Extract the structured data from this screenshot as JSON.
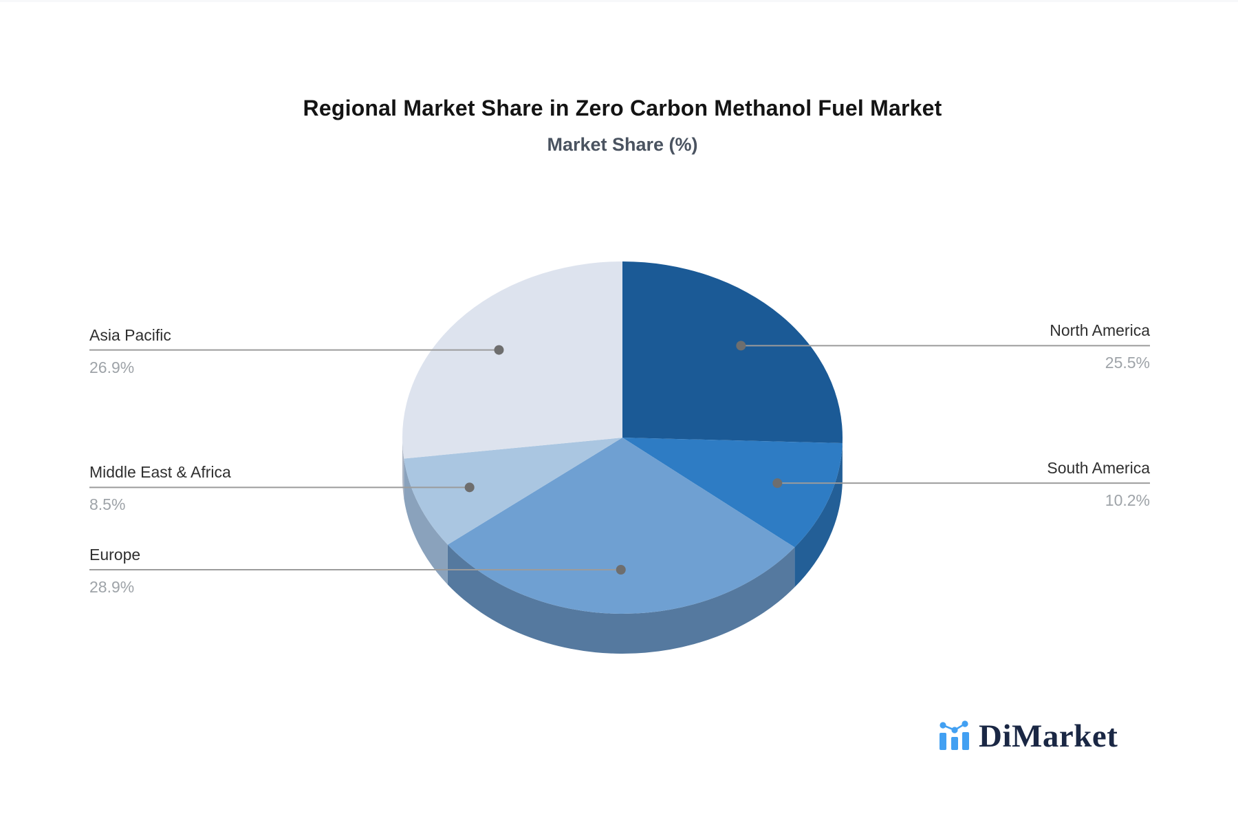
{
  "header": {
    "title": "Regional Market Share in Zero Carbon Methanol Fuel Market",
    "subtitle": "Market Share (%)"
  },
  "chart_data": {
    "type": "pie",
    "style": "3d",
    "title": "Regional Market Share in Zero Carbon Methanol Fuel Market",
    "subtitle": "Market Share (%)",
    "unit": "%",
    "direction": "clockwise",
    "start_angle_deg": 0,
    "segments": [
      {
        "label": "North America",
        "value": 25.5,
        "color": "#1b5a96",
        "side_color": "#164a7c"
      },
      {
        "label": "South America",
        "value": 10.2,
        "color": "#2e7cc4",
        "side_color": "#235f97"
      },
      {
        "label": "Europe",
        "value": 28.9,
        "color": "#6fa0d2",
        "side_color": "#55799f"
      },
      {
        "label": "Middle East & Africa",
        "value": 8.5,
        "color": "#aac6e1",
        "side_color": "#8aa2bc"
      },
      {
        "label": "Asia Pacific",
        "value": 26.9,
        "color": "#dde3ee",
        "side_color": "#aeb6c4"
      }
    ],
    "label_name_color": "#2f2f2f",
    "label_value_color": "#9ea3a8",
    "leader_line_color": "#9b9b9b",
    "leader_dot_color": "#6e6e6e"
  },
  "branding": {
    "name": "DiMarket",
    "color": "#1a2744",
    "icon": "bar-chart-trend-icon",
    "icon_color": "#42a0f2"
  }
}
